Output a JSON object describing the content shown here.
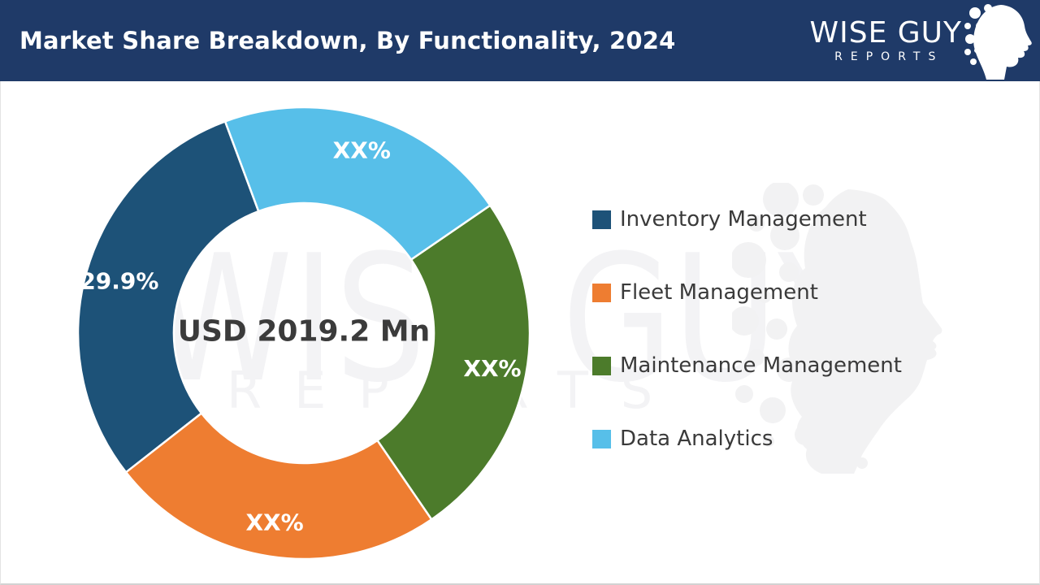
{
  "header": {
    "title": "Market Share Breakdown, By Functionality, 2024",
    "brand": {
      "line1": "WISE GUY",
      "line2": "REPORTS"
    }
  },
  "watermark": {
    "line1": "WISE GUY",
    "line2": "REPORTS"
  },
  "colors": {
    "header_bg": "#1f3a68",
    "center_text": "#3b3b3b",
    "legend_text": "#3a3a3a",
    "slice_separator": "#ffffff",
    "watermark": "#f3f3f5"
  },
  "chart_data": {
    "type": "pie",
    "subtype": "donut",
    "title": "Market Share Breakdown, By Functionality, 2024",
    "center_label": "USD 2019.2 Mn",
    "unit": "percent market share",
    "start_angle_deg": 110.4,
    "direction": "counterclockwise",
    "legend_position": "right",
    "inner_radius_ratio": 0.575,
    "slices": [
      {
        "label": "Inventory Management",
        "value": 29.9,
        "display_label": "29.9%",
        "color": "#1d5278"
      },
      {
        "label": "Fleet Management",
        "value": 24.0,
        "display_label": "XX%",
        "color": "#ee7d31"
      },
      {
        "label": "Maintenance Management",
        "value": 25.0,
        "display_label": "XX%",
        "color": "#4c7b2b"
      },
      {
        "label": "Data Analytics",
        "value": 21.1,
        "display_label": "XX%",
        "color": "#57bfe9"
      }
    ]
  }
}
